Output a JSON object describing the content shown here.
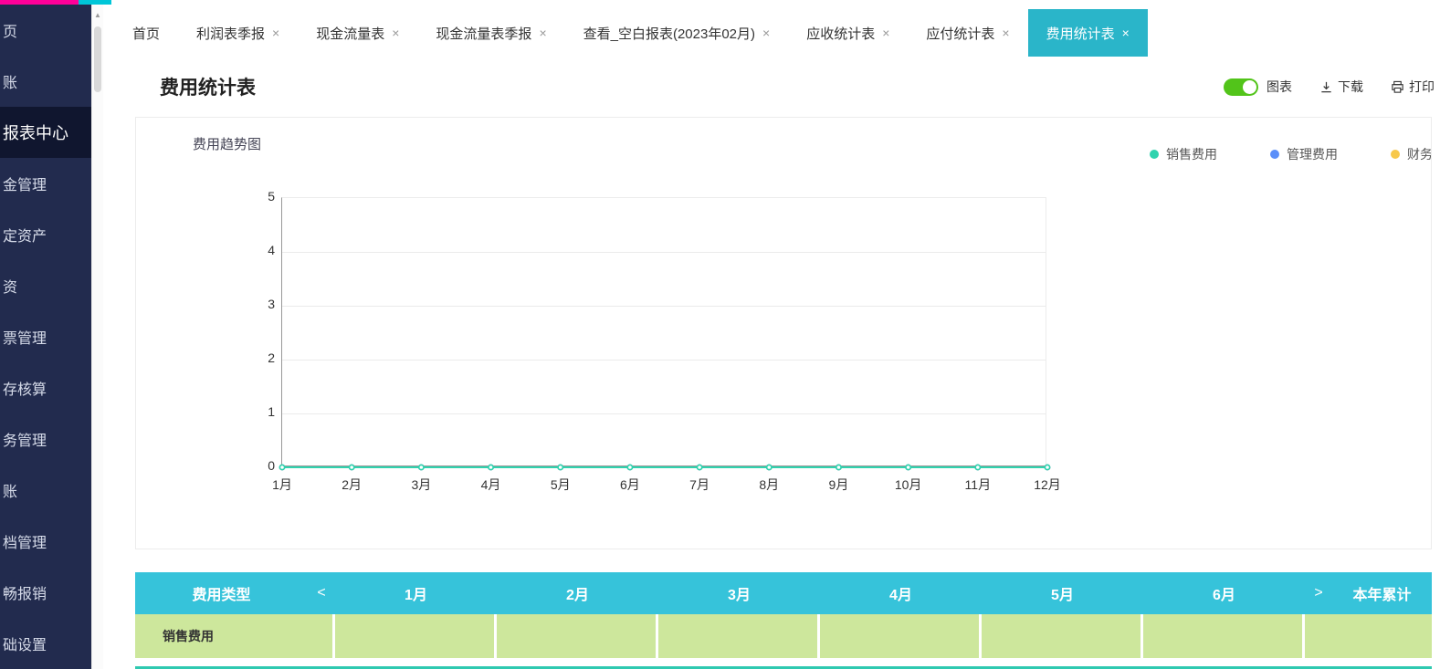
{
  "sidebar": {
    "scroll_up_glyph": "▲",
    "items": [
      {
        "label": "页"
      },
      {
        "label": "账"
      },
      {
        "label": "报表中心",
        "active": true
      },
      {
        "label": "金管理"
      },
      {
        "label": "定资产"
      },
      {
        "label": "资"
      },
      {
        "label": "票管理"
      },
      {
        "label": "存核算"
      },
      {
        "label": "务管理"
      },
      {
        "label": "账"
      },
      {
        "label": "档管理"
      },
      {
        "label": "畅报销"
      },
      {
        "label": "础设置"
      }
    ]
  },
  "tabs": {
    "close_glyph": "×",
    "items": [
      {
        "label": "首页",
        "closable": false,
        "active": false
      },
      {
        "label": "利润表季报",
        "closable": true,
        "active": false
      },
      {
        "label": "现金流量表",
        "closable": true,
        "active": false
      },
      {
        "label": "现金流量表季报",
        "closable": true,
        "active": false
      },
      {
        "label": "查看_空白报表(2023年02月)",
        "closable": true,
        "active": false
      },
      {
        "label": "应收统计表",
        "closable": true,
        "active": false
      },
      {
        "label": "应付统计表",
        "closable": true,
        "active": false
      },
      {
        "label": "费用统计表",
        "closable": true,
        "active": true
      }
    ]
  },
  "header": {
    "title": "费用统计表",
    "toggle_label": "图表",
    "toggle_state": "on",
    "download_label": "下载",
    "print_label": "打印"
  },
  "chart_data": {
    "type": "line",
    "title": "费用趋势图",
    "x": [
      "1月",
      "2月",
      "3月",
      "4月",
      "5月",
      "6月",
      "7月",
      "8月",
      "9月",
      "10月",
      "11月",
      "12月"
    ],
    "yticks": [
      0,
      1,
      2,
      3,
      4,
      5
    ],
    "ylim": [
      0,
      5
    ],
    "grid": true,
    "legend_position": "top-right",
    "series": [
      {
        "name": "销售费用",
        "color": "#2fd3ae",
        "values": [
          0,
          0,
          0,
          0,
          0,
          0,
          0,
          0,
          0,
          0,
          0,
          0
        ]
      },
      {
        "name": "管理费用",
        "color": "#5b8ff9",
        "values": [
          0,
          0,
          0,
          0,
          0,
          0,
          0,
          0,
          0,
          0,
          0,
          0
        ]
      },
      {
        "name": "财务费用",
        "color": "#f7c84b",
        "values": [
          0,
          0,
          0,
          0,
          0,
          0,
          0,
          0,
          0,
          0,
          0,
          0
        ]
      }
    ]
  },
  "table": {
    "type_header": "费用类型",
    "prev_glyph": "<",
    "next_glyph": ">",
    "month_headers": [
      "1月",
      "2月",
      "3月",
      "4月",
      "5月",
      "6月"
    ],
    "total_header": "本年累计",
    "rows": [
      {
        "name": "销售费用",
        "values": [
          "",
          "",
          "",
          "",
          "",
          ""
        ],
        "total": ""
      }
    ]
  },
  "colors": {
    "accent_cyan": "#2ab5c9",
    "table_header_cyan": "#36c3da",
    "row_green": "#cde79c",
    "toggle_green": "#52c41a",
    "sidebar_bg": "#222b4e",
    "sidebar_active_bg": "#10162f",
    "brand_pink": "#ff0099",
    "brand_cyan": "#00c6d8",
    "table_scrollbar_teal": "#2fc9b0"
  }
}
